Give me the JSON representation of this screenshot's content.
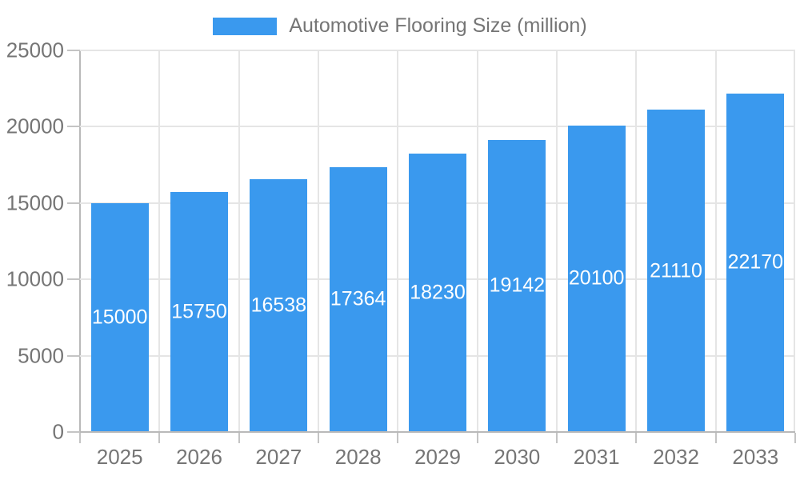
{
  "legend": {
    "label": "Automotive Flooring Size (million)"
  },
  "chart_data": {
    "type": "bar",
    "title": "Automotive Flooring Size (million)",
    "categories": [
      "2025",
      "2026",
      "2027",
      "2028",
      "2029",
      "2030",
      "2031",
      "2032",
      "2033"
    ],
    "values": [
      15000,
      15750,
      16538,
      17364,
      18230,
      19142,
      20100,
      21110,
      22170
    ],
    "value_labels": [
      "15000",
      "15750",
      "16538",
      "17364",
      "18230",
      "19142",
      "20100",
      "21110",
      "22170"
    ],
    "xlabel": "",
    "ylabel": "",
    "ylim": [
      0,
      25000
    ],
    "yticks": [
      0,
      5000,
      10000,
      15000,
      20000,
      25000
    ],
    "ytick_labels": [
      "0",
      "5000",
      "10000",
      "15000",
      "20000",
      "25000"
    ],
    "grid": true,
    "legend_position": "top",
    "value_labels_position": "center-inside-bar"
  },
  "colors": {
    "bar": "#3A99EE",
    "bar_value_label": "#FFFFFF",
    "axis_text": "#757575",
    "gridline": "#E5E5E5",
    "axis_line": "#B9B9B9",
    "tick": "#C4C4C4",
    "background": "#FFFFFF"
  }
}
